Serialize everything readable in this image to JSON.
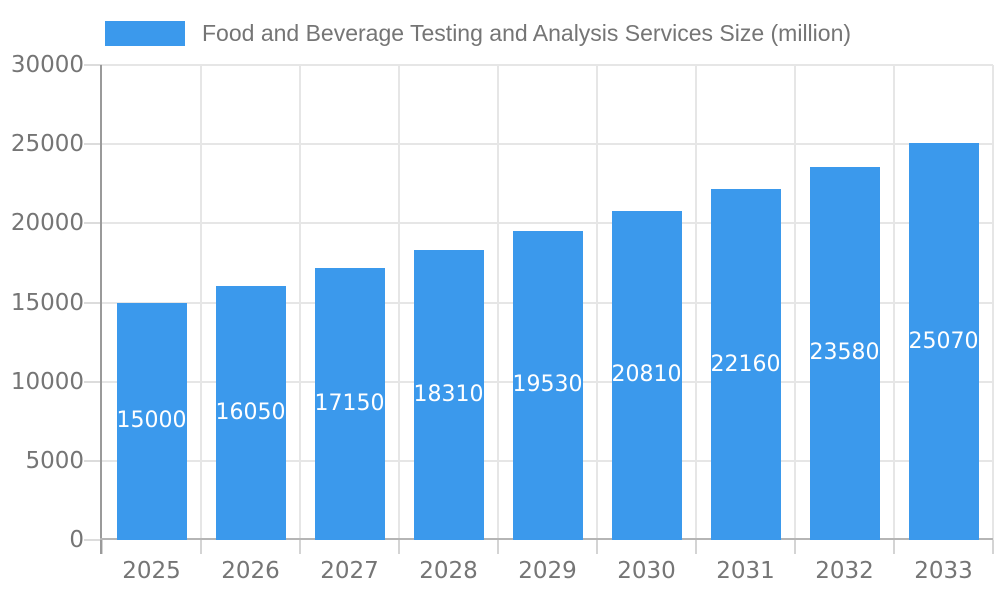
{
  "chart_data": {
    "type": "bar",
    "title": "Food and Beverage Testing and Analysis Services Size (million)",
    "legend": {
      "position": "top",
      "entries": [
        "Food and Beverage Testing and Analysis Services Size (million)"
      ]
    },
    "categories": [
      "2025",
      "2026",
      "2027",
      "2028",
      "2029",
      "2030",
      "2031",
      "2032",
      "2033"
    ],
    "series": [
      {
        "name": "Food and Beverage Testing and Analysis Services Size (million)",
        "values": [
          15000,
          16050,
          17150,
          18310,
          19530,
          20810,
          22160,
          23580,
          25070
        ]
      }
    ],
    "value_labels": [
      "15000",
      "16050",
      "17150",
      "18310",
      "19530",
      "20810",
      "22160",
      "23580",
      "25070"
    ],
    "xlabel": "",
    "ylabel": "",
    "ylim": [
      0,
      30000
    ],
    "y_ticks": [
      0,
      5000,
      10000,
      15000,
      20000,
      25000,
      30000
    ],
    "grid": true,
    "colors": {
      "bar": "#3B99EC",
      "value_label_text": "#ffffff",
      "axis_text": "#757575",
      "gridline": "#e6e6e6",
      "y_axis_line": "#9a9a9a",
      "x_axis_line": "#b5b5b5",
      "background": "#ffffff"
    }
  }
}
